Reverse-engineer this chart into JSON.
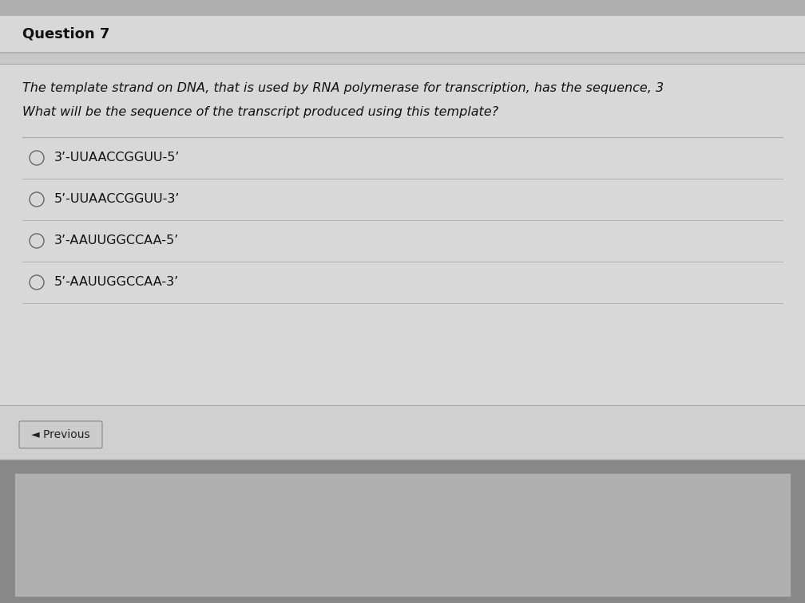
{
  "title": "Question 7",
  "question_text_line1": "The template strand on DNA, that is used by RNA polymerase for transcription, has the sequence, 3",
  "question_text_line2": "What will be the sequence of the transcript produced using this template?",
  "options": [
    "3’-UUAACCGGUU-5’",
    "5’-UUAACCGGUU-3’",
    "3’-AAUUGGCCAA-5’",
    "5’-AAUUGGCCAA-3’"
  ],
  "button_text": "◄ Previous",
  "outer_bg": "#b8b8b8",
  "header_bg": "#d8d8d8",
  "content_bg": "#d8d8d8",
  "button_area_bg": "#d0d0d0",
  "bottom_bar_bg": "#888888",
  "bottom_inner_bg": "#b0b0b0",
  "separator_color": "#aaaaaa",
  "title_fontsize": 13,
  "question_fontsize": 11.5,
  "option_fontsize": 11.5,
  "button_fontsize": 10
}
